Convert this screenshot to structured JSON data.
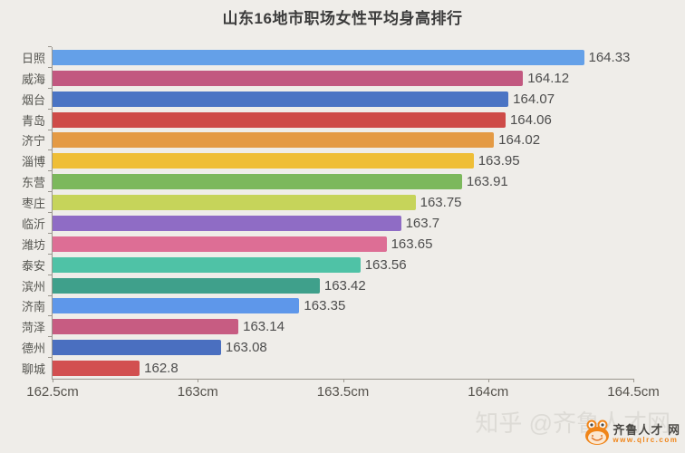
{
  "title": "山东16地市职场女性平均身高排行",
  "chart_data": {
    "type": "bar",
    "orientation": "horizontal",
    "title": "山东16地市职场女性平均身高排行",
    "categories": [
      "日照",
      "威海",
      "烟台",
      "青岛",
      "济宁",
      "淄博",
      "东营",
      "枣庄",
      "临沂",
      "潍坊",
      "泰安",
      "滨州",
      "济南",
      "菏泽",
      "德州",
      "聊城"
    ],
    "values": [
      164.33,
      164.12,
      164.07,
      164.06,
      164.02,
      163.95,
      163.91,
      163.75,
      163.7,
      163.65,
      163.56,
      163.42,
      163.35,
      163.14,
      163.08,
      162.8
    ],
    "bar_colors": [
      "#64a0e8",
      "#c25880",
      "#4b74c4",
      "#ce4b48",
      "#e49a44",
      "#efbe36",
      "#7cb85c",
      "#c6d45a",
      "#8f6cc5",
      "#dd6e95",
      "#4fc2a6",
      "#3fa08b",
      "#5e97ea",
      "#c75c82",
      "#4a6fc0",
      "#d25050"
    ],
    "xlim": [
      162.5,
      164.5
    ],
    "x_ticks": [
      {
        "label": "162.5cm",
        "percent": 0
      },
      {
        "label": "163cm",
        "percent": 25
      },
      {
        "label": "163.5cm",
        "percent": 50
      },
      {
        "label": "164cm",
        "percent": 75
      },
      {
        "label": "164.5cm",
        "percent": 100
      }
    ],
    "grid": "off",
    "value_labels": "shown at bar end"
  },
  "watermark": {
    "text": "知乎 @齐鲁人才网"
  },
  "brand": {
    "name": "齐鲁人才 网",
    "url": "www.qlrc.com",
    "accent_color": "#f08519"
  },
  "colors": {
    "background": "#efede9",
    "axis": "#9a968e",
    "title_text": "#3b3b3b",
    "label_text": "#555550",
    "value_text": "#4d4d4d",
    "watermark_text": "#dddbd6"
  }
}
